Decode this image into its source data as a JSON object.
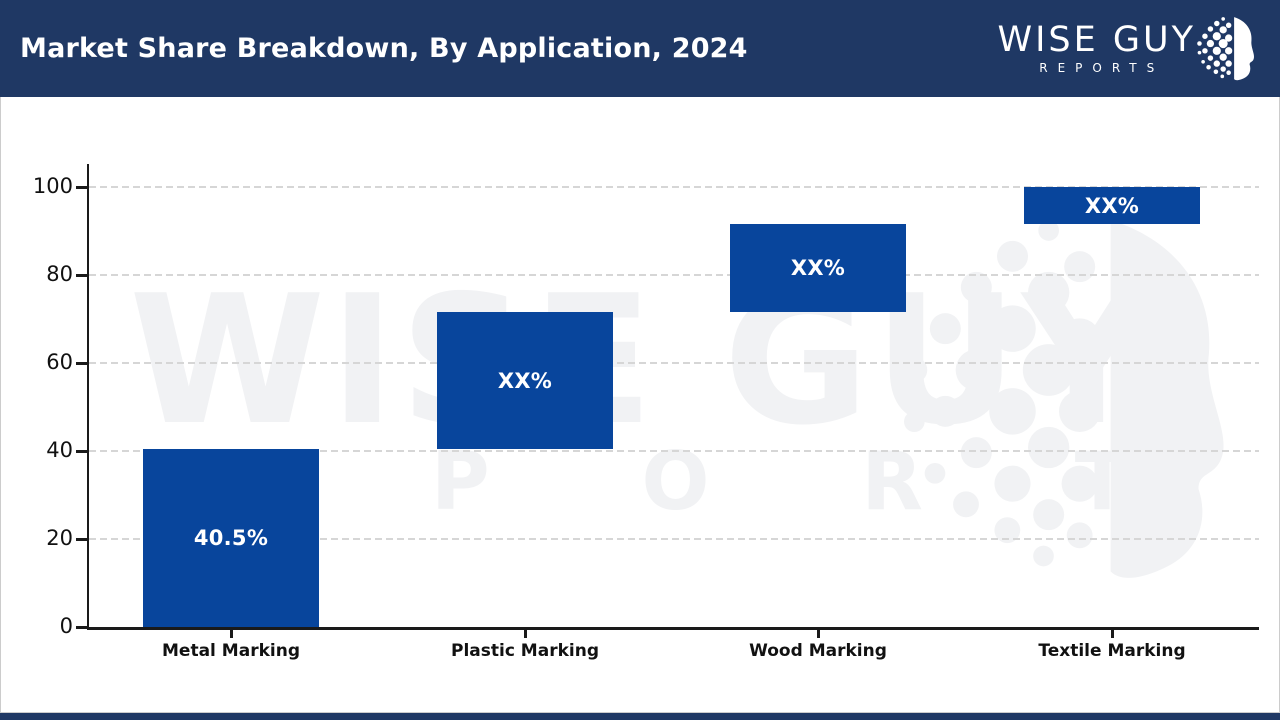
{
  "header": {
    "title": "Market Share Breakdown, By Application, 2024",
    "logo": {
      "line1": "WISE GUY",
      "line2": "REPORTS"
    }
  },
  "watermark": {
    "line1": "WISE GUY",
    "line2": "P O R T S"
  },
  "chart_data": {
    "type": "bar",
    "subtype": "waterfall",
    "title": "Market Share Breakdown, By Application, 2024",
    "categories": [
      "Metal Marking",
      "Plastic Marking",
      "Wood Marking",
      "Textile Marking"
    ],
    "segments": [
      {
        "category": "Metal Marking",
        "start": 0,
        "end": 40.5,
        "label": "40.5%"
      },
      {
        "category": "Plastic Marking",
        "start": 40.5,
        "end": 71.5,
        "label": "XX%"
      },
      {
        "category": "Wood Marking",
        "start": 71.5,
        "end": 91.5,
        "label": "XX%"
      },
      {
        "category": "Textile Marking",
        "start": 91.5,
        "end": 100,
        "label": "XX%"
      }
    ],
    "yticks": [
      0,
      20,
      40,
      60,
      80,
      100
    ],
    "ylim": [
      0,
      105
    ],
    "xlabel": "",
    "ylabel": "",
    "grid": "horizontal-dashed",
    "legend": "none"
  },
  "colors": {
    "header_bg": "#1f3864",
    "footer_bg": "#1f3864",
    "bar": "#08459c",
    "grid": "#d6d6d6",
    "watermark": "#f1f2f4",
    "axis": "#1a1a1a",
    "title_text": "#ffffff",
    "bar_label_text": "#ffffff"
  }
}
